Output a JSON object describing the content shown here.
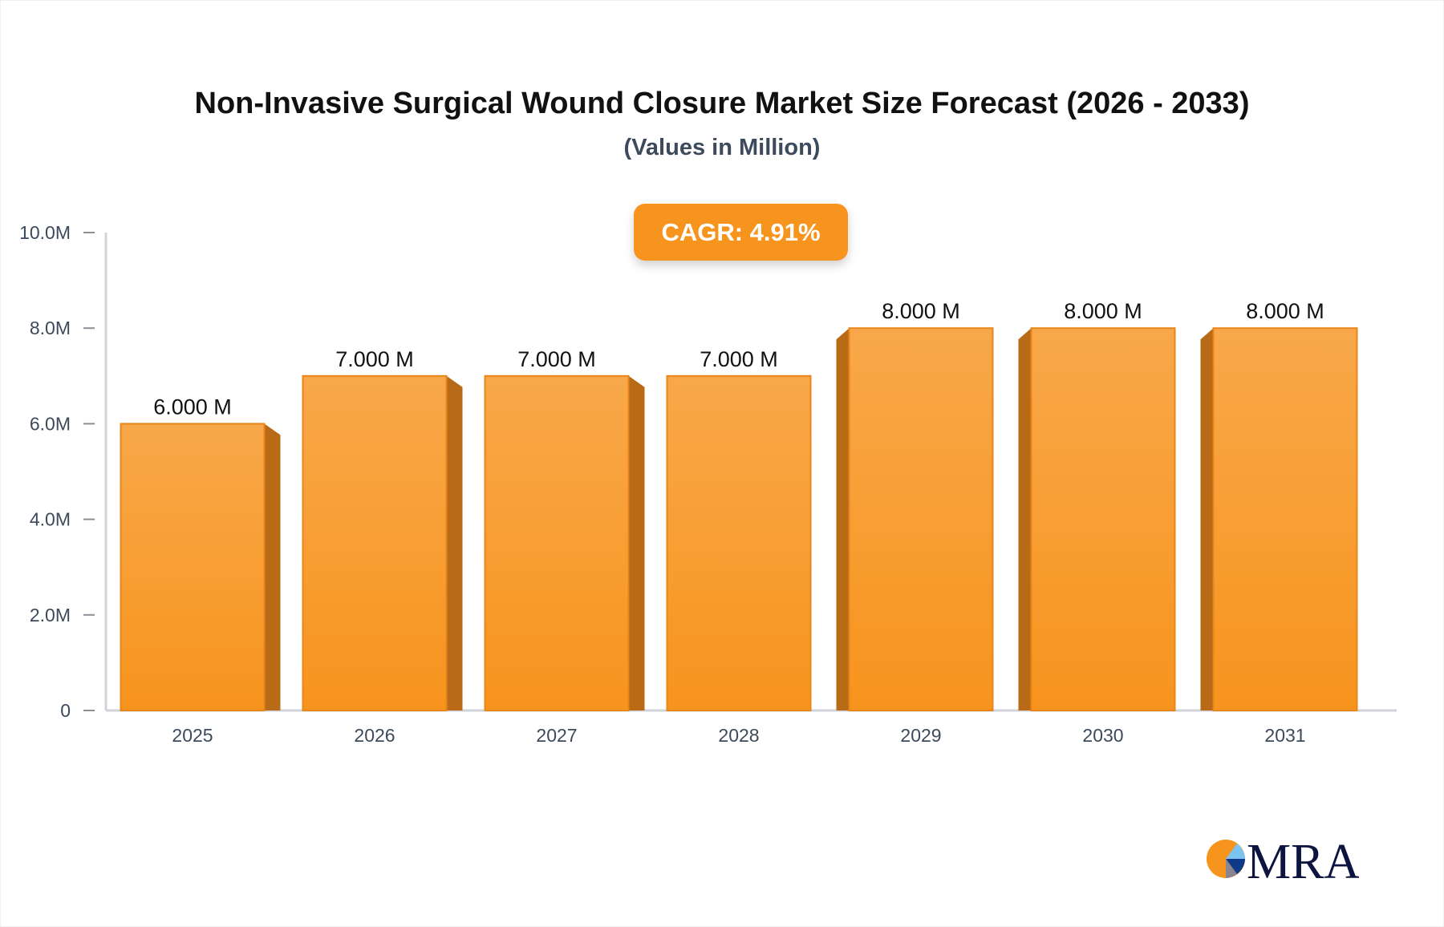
{
  "chart_data": {
    "type": "bar",
    "title": "Non-Invasive Surgical Wound Closure Market Size Forecast (2026 - 2033)",
    "subtitle": "(Values in Million)",
    "annotation": "CAGR: 4.91%",
    "categories": [
      "2025",
      "2026",
      "2027",
      "2028",
      "2029",
      "2030",
      "2031"
    ],
    "values": [
      6,
      7,
      7,
      7,
      8,
      8,
      8
    ],
    "data_labels": [
      "6.000 M",
      "7.000 M",
      "7.000 M",
      "7.000 M",
      "8.000 M",
      "8.000 M",
      "8.000 M"
    ],
    "ylim": [
      0,
      10
    ],
    "yticks": [
      0,
      2,
      4,
      6,
      8,
      10
    ],
    "ytick_labels": [
      "0",
      "2.0M",
      "4.0M",
      "6.0M",
      "8.0M",
      "10.0M"
    ],
    "xlabel": "",
    "ylabel": "",
    "grid": false,
    "colors": {
      "bar": "#f7941d",
      "bar_top": "#f8a84a",
      "bar_side": "#b96a17",
      "axis": "#d0d3da",
      "badge": "#f7941d"
    }
  },
  "logo": {
    "text": "MRA",
    "colors": {
      "orange": "#f7941d",
      "navy": "#0d1440",
      "light_blue": "#7cc4f0",
      "blue": "#0e3a8a",
      "gray": "#8a8490"
    }
  }
}
